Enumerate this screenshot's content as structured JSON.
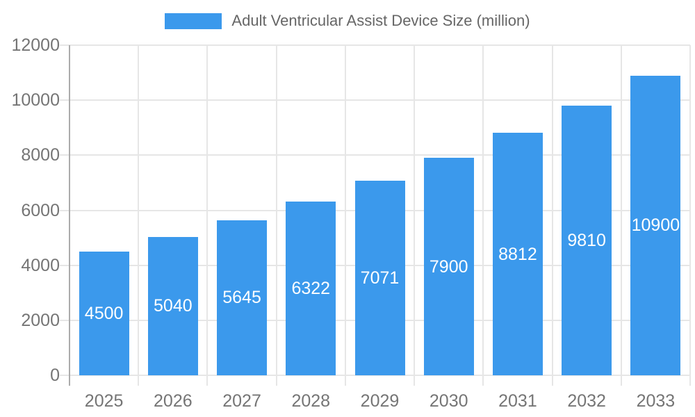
{
  "legend": {
    "label": "Adult Ventricular Assist Device Size (million)"
  },
  "chart_data": {
    "type": "bar",
    "title": "Adult Ventricular Assist Device Size (million)",
    "categories": [
      "2025",
      "2026",
      "2027",
      "2028",
      "2029",
      "2030",
      "2031",
      "2032",
      "2033"
    ],
    "values": [
      4500,
      5040,
      5645,
      6322,
      7071,
      7900,
      8812,
      9810,
      10900
    ],
    "xlabel": "",
    "ylabel": "",
    "ylim": [
      0,
      12000
    ],
    "yticks": [
      0,
      2000,
      4000,
      6000,
      8000,
      10000,
      12000
    ],
    "grid": true,
    "legend_position": "top",
    "bar_label_position": "center-inside",
    "colors": {
      "bar": "#3B99EC",
      "bar_label": "#FFFFFF",
      "grid": "#E6E6E6",
      "axis_line": "#ABABAB",
      "tick_label": "#757575",
      "legend_text": "#666666"
    }
  }
}
